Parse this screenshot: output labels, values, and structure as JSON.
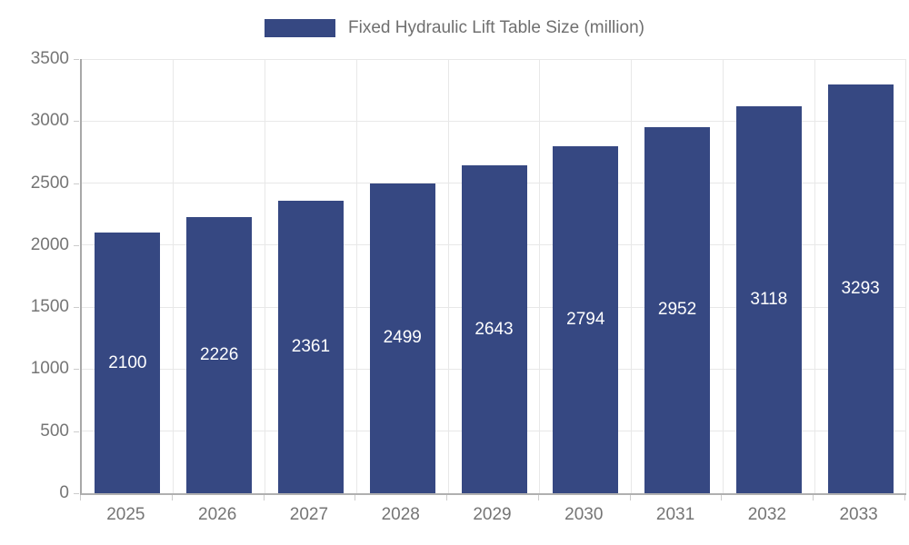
{
  "legend": {
    "label": "Fixed Hydraulic Lift Table Size (million)"
  },
  "chart_data": {
    "type": "bar",
    "title": "Fixed Hydraulic Lift Table Size (million)",
    "categories": [
      "2025",
      "2026",
      "2027",
      "2028",
      "2029",
      "2030",
      "2031",
      "2032",
      "2033"
    ],
    "values": [
      2100,
      2226,
      2361,
      2499,
      2643,
      2794,
      2952,
      3118,
      3293
    ],
    "xlabel": "",
    "ylabel": "",
    "ylim": [
      0,
      3500
    ],
    "yticks": [
      0,
      500,
      1000,
      1500,
      2000,
      2500,
      3000,
      3500
    ],
    "grid": true,
    "legend_position": "top",
    "value_labels": "inside-center",
    "colors": {
      "bar": "#364882",
      "bar_value_text": "#ffffff",
      "axis_text": "#757575",
      "legend_text": "#6f6f6f",
      "grid_line": "#e8e8e8",
      "axis_line": "#b0b0b0",
      "tick": "#cccccc",
      "background": "#ffffff"
    }
  }
}
